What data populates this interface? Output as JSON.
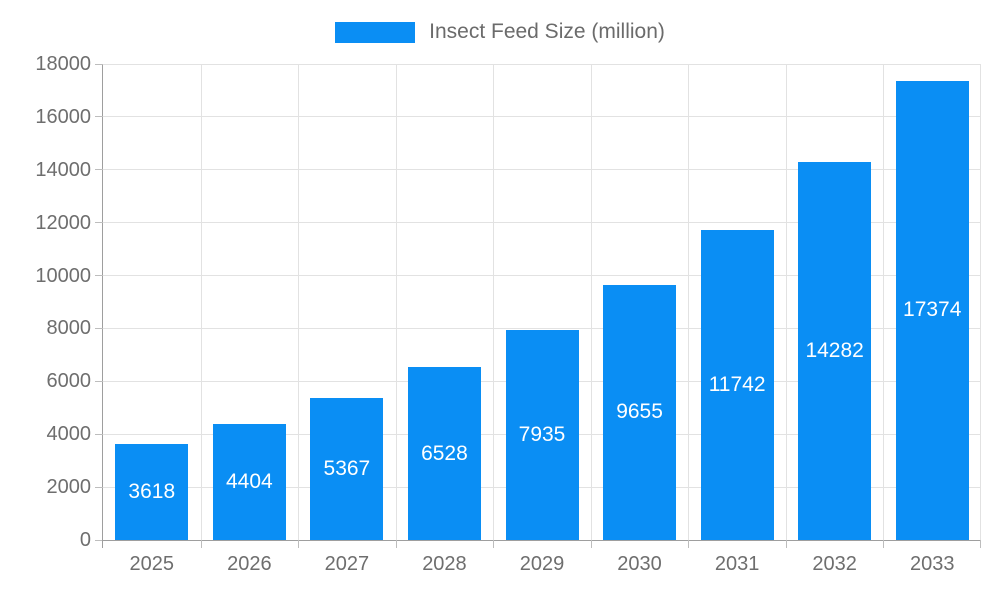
{
  "chart_data": {
    "type": "bar",
    "title": "",
    "legend": "Insect Feed Size (million)",
    "legend_position": "top",
    "categories": [
      "2025",
      "2026",
      "2027",
      "2028",
      "2029",
      "2030",
      "2031",
      "2032",
      "2033"
    ],
    "values": [
      3618,
      4404,
      5367,
      6528,
      7935,
      9655,
      11742,
      14282,
      17374
    ],
    "xlabel": "",
    "ylabel": "",
    "ylim": [
      0,
      18000
    ],
    "ytick_step": 2000,
    "grid": true,
    "value_labels": "centered-in-bar"
  },
  "colors": {
    "bar": "#0a8ef4",
    "value_label": "#ffffff",
    "gridline": "#e2e2e2",
    "axis": "#9e9e9e",
    "tick": "#bdbdbd",
    "tick_label": "#6e6e6e",
    "legend_text": "#6b6b6b",
    "background": "#ffffff"
  }
}
